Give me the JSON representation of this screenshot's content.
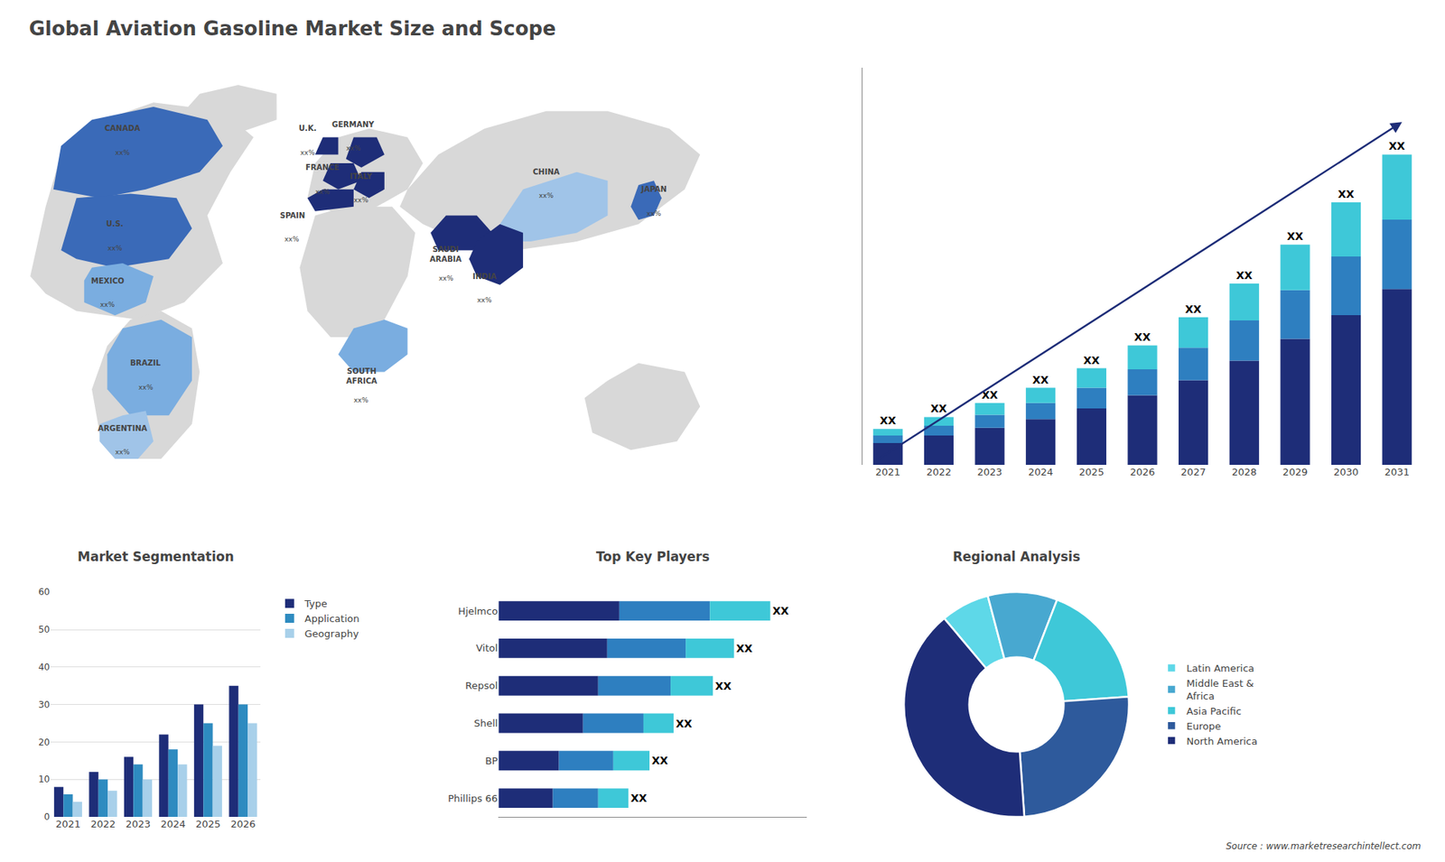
{
  "title": "Global Aviation Gasoline Market Size and Scope",
  "annotations": [
    "Source : www.marketresearchintellect.com"
  ],
  "chart_data": [
    {
      "type": "map",
      "categories": [
        "CANADA",
        "U.S.",
        "MEXICO",
        "BRAZIL",
        "ARGENTINA",
        "U.K.",
        "FRANCE",
        "SPAIN",
        "GERMANY",
        "ITALY",
        "SAUDI\nARABIA",
        "SOUTH\nAFRICA",
        "CHINA",
        "INDIA",
        "JAPAN"
      ],
      "value_labels": [
        "xx%",
        "xx%",
        "xx%",
        "xx%",
        "xx%",
        "xx%",
        "xx%",
        "xx%",
        "xx%",
        "xx%",
        "xx%",
        "xx%",
        "xx%",
        "xx%",
        "xx%"
      ],
      "colors": [
        "#3a6ab8",
        "#3a6ab8",
        "#7aade0",
        "#7aade0",
        "#a0c4e8",
        "#1e2d78",
        "#1e2d78",
        "#1e2d78",
        "#1e2d78",
        "#1e2d78",
        "#1e2d78",
        "#7aade0",
        "#a0c4e8",
        "#1e2d78",
        "#3a6ab8"
      ],
      "color": "#d8d8d8"
    },
    {
      "type": "bar",
      "stacked": true,
      "categories": [
        "2021",
        "2022",
        "2023",
        "2024",
        "2025",
        "2026",
        "2027",
        "2028",
        "2029",
        "2030",
        "2031"
      ],
      "series": [
        {
          "color": "#1e2d78",
          "values": [
            1.0,
            1.35,
            1.7,
            2.1,
            2.6,
            3.2,
            3.9,
            4.8,
            5.8,
            6.9,
            8.1
          ]
        },
        {
          "color": "#2e7fc0",
          "values": [
            0.35,
            0.45,
            0.6,
            0.75,
            0.95,
            1.2,
            1.5,
            1.85,
            2.25,
            2.7,
            3.2
          ]
        },
        {
          "color": "#3ec8d8",
          "values": [
            0.3,
            0.4,
            0.55,
            0.7,
            0.9,
            1.1,
            1.4,
            1.7,
            2.1,
            2.5,
            3.0
          ],
          "value_labels": [
            "XX",
            "XX",
            "XX",
            "XX",
            "XX",
            "XX",
            "XX",
            "XX",
            "XX",
            "XX",
            "XX"
          ]
        }
      ],
      "ylim": [
        0,
        18.304
      ],
      "tick_labels": "x",
      "grid": false
    },
    {
      "type": "bar",
      "title": "Market Segmentation",
      "categories": [
        "2021",
        "2022",
        "2023",
        "2024",
        "2025",
        "2026"
      ],
      "series": [
        {
          "name": "Type",
          "color": "#1e2d78",
          "values": [
            8,
            12,
            16,
            22,
            30,
            35
          ]
        },
        {
          "name": "Application",
          "color": "#2e8bc0",
          "values": [
            6,
            10,
            14,
            18,
            25,
            30
          ]
        },
        {
          "name": "Geography",
          "color": "#a8d0ea",
          "values": [
            4,
            7,
            10,
            14,
            19,
            25
          ]
        }
      ],
      "ylim": [
        0,
        60
      ],
      "yticks": [
        0,
        10,
        20,
        30,
        40,
        50,
        60
      ],
      "grid": true,
      "legend": "right"
    },
    {
      "type": "bar",
      "title": "Top Key Players",
      "orientation": "horizontal",
      "stacked": true,
      "categories": [
        "Hjelmco",
        "Vitol",
        "Repsol",
        "Shell",
        "BP",
        "Phillips 66"
      ],
      "series": [
        {
          "color": "#1e2d78",
          "values": [
            40,
            36,
            33,
            28,
            20,
            18
          ]
        },
        {
          "color": "#2e7fc0",
          "values": [
            30,
            26,
            24,
            20,
            18,
            15
          ]
        },
        {
          "color": "#3ec8d8",
          "values": [
            20,
            16,
            14,
            10,
            12,
            10
          ],
          "value_labels": [
            "XX",
            "XX",
            "XX",
            "XX",
            "XX",
            "XX"
          ]
        }
      ],
      "xlim": [
        0,
        102
      ],
      "tick_labels": "y",
      "grid": false
    },
    {
      "type": "pie",
      "title": "Regional Analysis",
      "categories": [
        "Latin America",
        "Middle East &\nAfrica",
        "Asia Pacific",
        "Europe",
        "North America"
      ],
      "values": [
        7,
        10,
        18,
        25,
        40
      ],
      "colors": [
        "#5ed8e8",
        "#48a8d0",
        "#3ec8d8",
        "#2e5a9c",
        "#1e2d78"
      ],
      "legend": "right"
    }
  ]
}
